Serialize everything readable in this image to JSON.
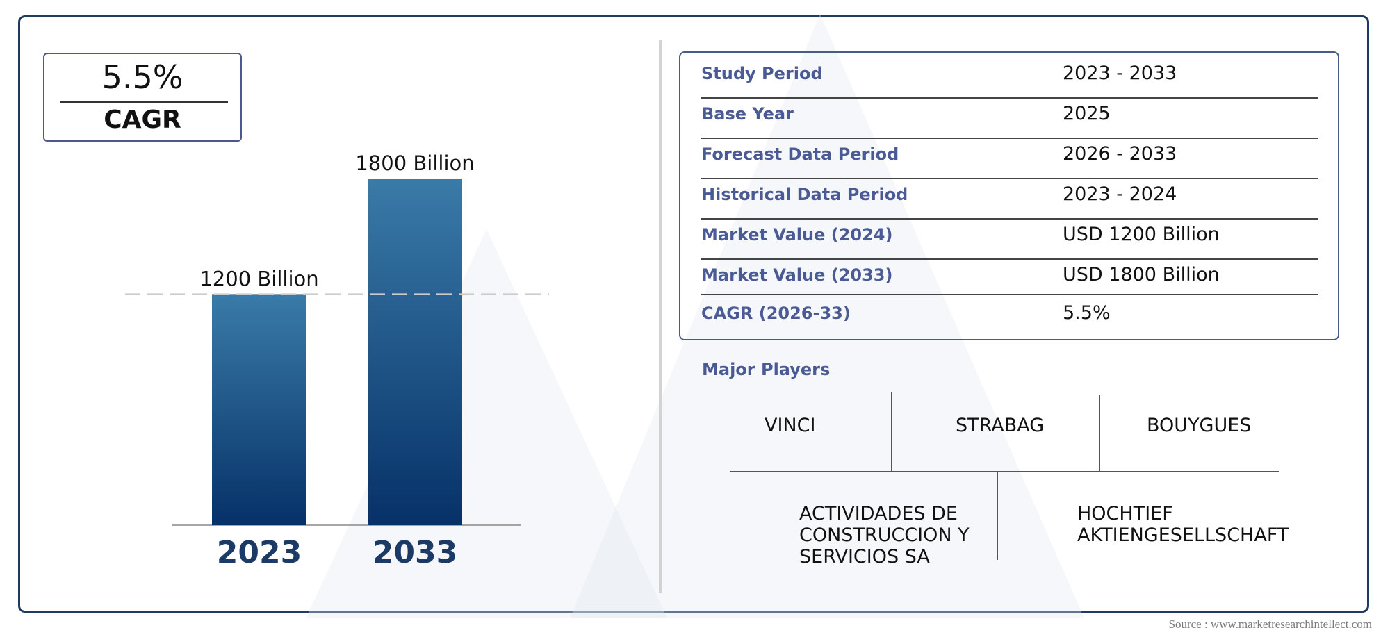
{
  "cagr": {
    "value": "5.5%",
    "label": "CAGR"
  },
  "chart_data": {
    "type": "bar",
    "categories": [
      "2023",
      "2033"
    ],
    "values": [
      1200,
      1800
    ],
    "data_labels": [
      "1200 Billion",
      "1800 Billion"
    ],
    "title": "",
    "xlabel": "",
    "ylabel": "",
    "ylim": [
      0,
      1800
    ],
    "reference_line_value": 1200,
    "grid": false,
    "legend": "none",
    "colors": {
      "bar_top": "#3a7ba8",
      "bar_bottom": "#063168",
      "axis_label": "#1b3a66"
    }
  },
  "info_table": [
    {
      "label": "Study Period",
      "value": "2023 - 2033"
    },
    {
      "label": "Base Year",
      "value": "2025"
    },
    {
      "label": "Forecast Data Period",
      "value": "2026 - 2033"
    },
    {
      "label": "Historical Data Period",
      "value": "2023 - 2024"
    },
    {
      "label": "Market Value (2024)",
      "value": "USD 1200 Billion"
    },
    {
      "label": "Market Value (2033)",
      "value": "USD 1800 Billion"
    },
    {
      "label": "CAGR (2026-33)",
      "value": "5.5%"
    }
  ],
  "players": {
    "title": "Major Players",
    "row1": [
      "VINCI",
      "STRABAG",
      "BOUYGUES"
    ],
    "row2": [
      [
        "ACTIVIDADES DE",
        "CONSTRUCCION Y",
        "SERVICIOS SA"
      ],
      [
        "HOCHTIEF",
        "AKTIENGESELLSCHAFT"
      ]
    ]
  },
  "source": "Source : www.marketresearchintellect.com"
}
